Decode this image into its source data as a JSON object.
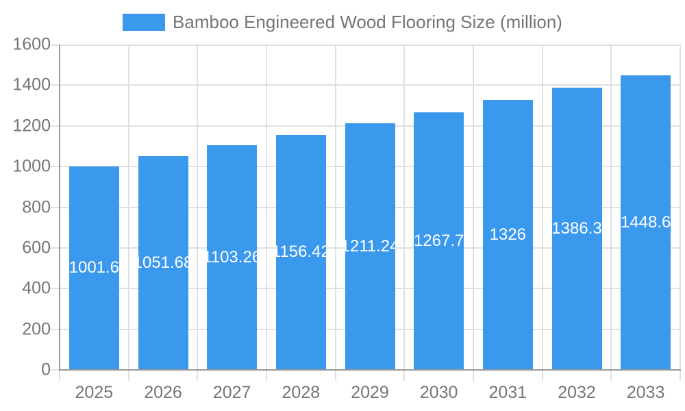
{
  "chart_data": {
    "type": "bar",
    "title": "Bamboo Engineered Wood Flooring Size (million)",
    "categories": [
      "2025",
      "2026",
      "2027",
      "2028",
      "2029",
      "2030",
      "2031",
      "2032",
      "2033"
    ],
    "values": [
      1001.6,
      1051.68,
      1103.26,
      1156.42,
      1211.24,
      1267.7,
      1326,
      1386.3,
      1448.6
    ],
    "value_labels": [
      "1001.6",
      "1051.68",
      "1103.26",
      "1156.42",
      "1211.24",
      "1267.7",
      "1326",
      "1386.3",
      "1448.6"
    ],
    "xlabel": "",
    "ylabel": "",
    "ylim": [
      0,
      1600
    ],
    "ytick_interval": 200,
    "ytick_labels": [
      "0",
      "200",
      "400",
      "600",
      "800",
      "1000",
      "1200",
      "1400",
      "1600"
    ],
    "legend_position": "top",
    "grid": true,
    "value_labels_inside_bars": true,
    "colors": {
      "bar": "#3A99EC",
      "value_label": "#FFFFFF",
      "axis_text": "#757575",
      "grid_line": "#E0E0E0",
      "axis_line": "#999999",
      "background": "#FFFFFF"
    }
  }
}
